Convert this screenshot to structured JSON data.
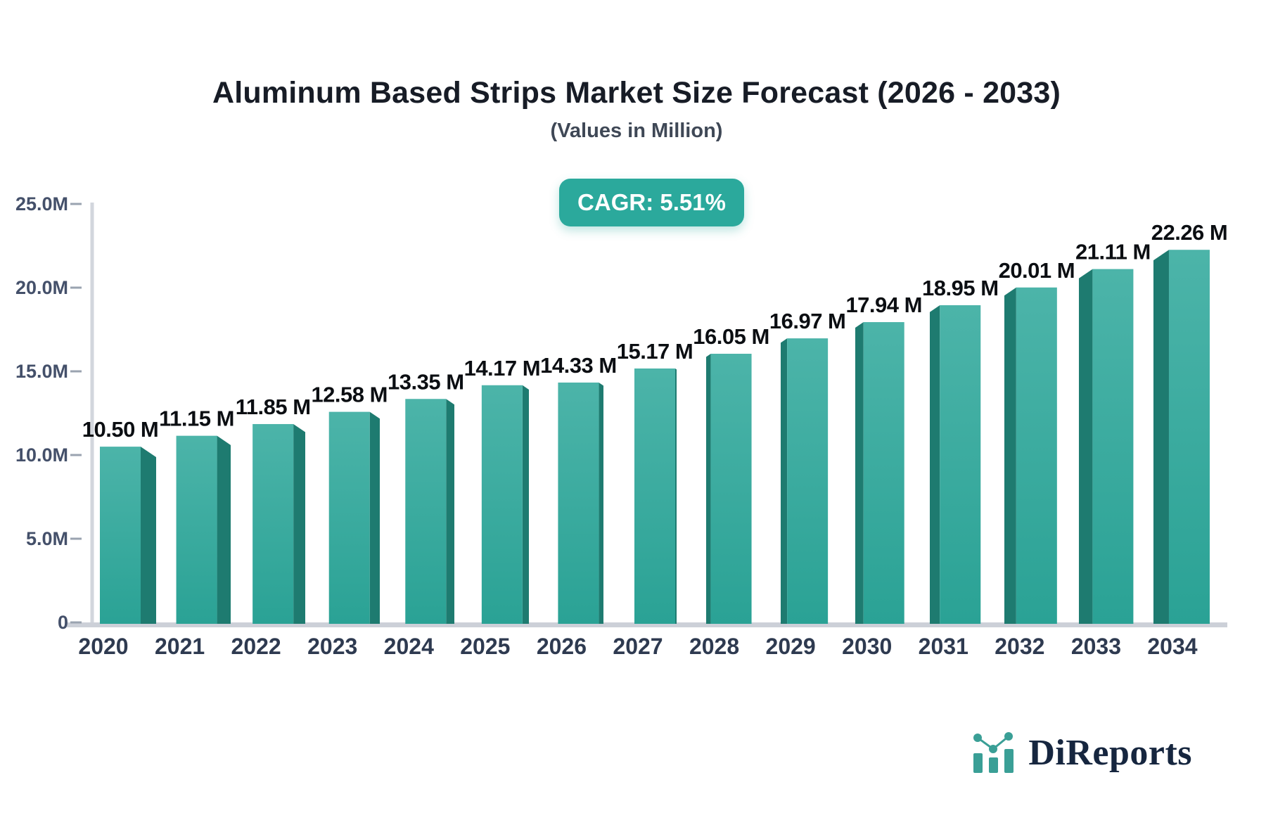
{
  "header": {
    "title": "Aluminum Based Strips Market Size Forecast (2026 - 2033)",
    "subtitle": "(Values in Million)",
    "cagr_badge": "CAGR: 5.51%"
  },
  "chart_data": {
    "type": "bar",
    "title": "Aluminum Based Strips Market Size Forecast (2026 - 2033)",
    "subtitle": "(Values in Million)",
    "categories": [
      "2020",
      "2021",
      "2022",
      "2023",
      "2024",
      "2025",
      "2026",
      "2027",
      "2028",
      "2029",
      "2030",
      "2031",
      "2032",
      "2033",
      "2034"
    ],
    "values": [
      10.5,
      11.15,
      11.85,
      12.58,
      13.35,
      14.17,
      14.33,
      15.17,
      16.05,
      16.97,
      17.94,
      18.95,
      20.01,
      21.11,
      22.26
    ],
    "value_labels": [
      "10.50 M",
      "11.15 M",
      "11.85 M",
      "12.58 M",
      "13.35 M",
      "14.17 M",
      "14.33 M",
      "15.17 M",
      "16.05 M",
      "16.97 M",
      "17.94 M",
      "18.95 M",
      "20.01 M",
      "21.11 M",
      "22.26 M"
    ],
    "unit": "M",
    "y_ticks": [
      {
        "value": 0,
        "label": "0"
      },
      {
        "value": 5,
        "label": "5.0M"
      },
      {
        "value": 10,
        "label": "10.0M"
      },
      {
        "value": 15,
        "label": "15.0M"
      },
      {
        "value": 20,
        "label": "20.0M"
      },
      {
        "value": 25,
        "label": "25.0M"
      }
    ],
    "ylim": [
      0,
      25
    ],
    "grid": false,
    "legend": "none",
    "style_3d": true,
    "colors": {
      "bar_front_top": "#4cb4a9",
      "bar_front_bottom": "#2aa295",
      "bar_side": "#1e7b70",
      "axis_line": "#d2d6dd",
      "baseline": "#ccd0d8",
      "tick_mark": "#9aa3b0",
      "tick_label": "#44506a",
      "year_label": "#2e3a50",
      "value_label": "#0b0e12",
      "badge_bg": "#2ba99c",
      "badge_text": "#ffffff"
    }
  },
  "footer": {
    "brand": "DiReports",
    "logo_icon": "mini-bar-line-chart",
    "logo_colors": {
      "icon": "#3a9f96",
      "text": "#16263f"
    }
  }
}
